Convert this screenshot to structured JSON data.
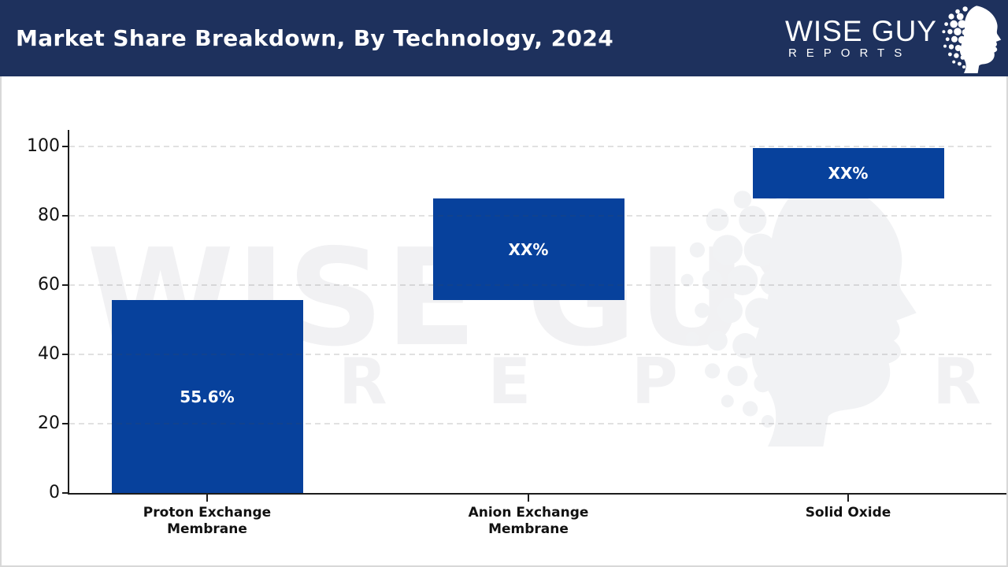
{
  "header": {
    "title": "Market Share Breakdown, By Technology, 2024",
    "bg_color": "#1e315d",
    "logo": {
      "line1": "WISE GUY",
      "line2": "REPORTS"
    }
  },
  "watermark": {
    "line1": "WISE GUY",
    "line2": "R E P O R T S"
  },
  "chart_data": {
    "type": "bar",
    "subtype": "waterfall-floating-bars",
    "title": "Market Share Breakdown, By Technology, 2024",
    "categories": [
      "Proton Exchange\nMembrane",
      "Anion Exchange\nMembrane",
      "Solid Oxide"
    ],
    "bars": [
      {
        "label": "55.6%",
        "start": 0,
        "end": 55.6
      },
      {
        "label": "XX%",
        "start": 55.6,
        "end": 85.0
      },
      {
        "label": "XX%",
        "start": 85.0,
        "end": 99.5
      }
    ],
    "xlabel": "",
    "ylabel": "",
    "ylim": [
      0,
      104.8
    ],
    "yticks": [
      0,
      20,
      40,
      60,
      80,
      100
    ],
    "grid": "horizontal dashed, drawn over bars",
    "legend": "none",
    "bar_color": "#07419c",
    "bar_label_color": "#ffffff"
  }
}
